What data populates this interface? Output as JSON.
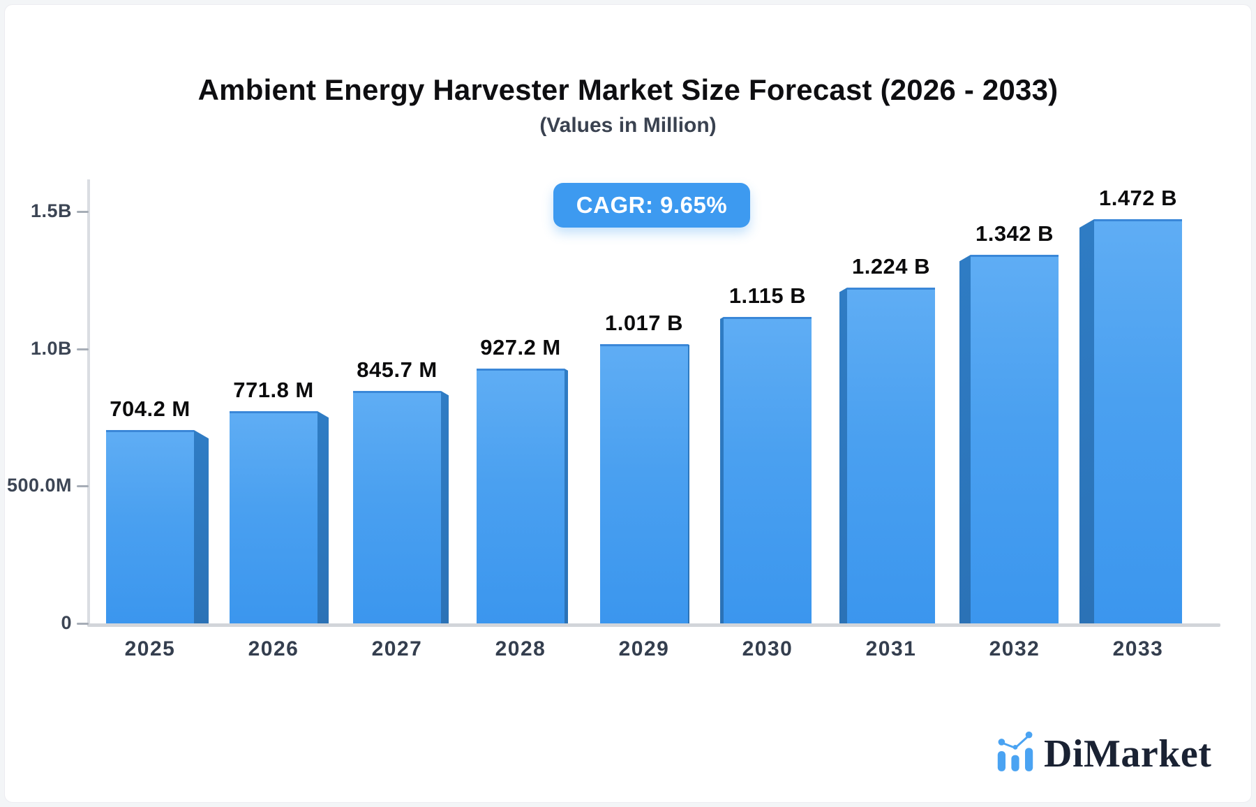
{
  "header": {
    "title": "Ambient Energy Harvester Market Size Forecast (2026 - 2033)",
    "subtitle": "(Values in Million)"
  },
  "badge": {
    "label": "CAGR: 9.65%"
  },
  "chart_data": {
    "type": "bar",
    "title": "Ambient Energy Harvester Market Size Forecast (2026 - 2033)",
    "subtitle": "(Values in Million)",
    "categories": [
      "2025",
      "2026",
      "2027",
      "2028",
      "2029",
      "2030",
      "2031",
      "2032",
      "2033"
    ],
    "values_millions": [
      704.2,
      771.8,
      845.7,
      927.2,
      1017,
      1115,
      1224,
      1342,
      1472
    ],
    "value_labels": [
      "704.2 M",
      "771.8 M",
      "845.7 M",
      "927.2 M",
      "1.017 B",
      "1.115 B",
      "1.224 B",
      "1.342 B",
      "1.472 B"
    ],
    "ylim_millions": [
      0,
      1500
    ],
    "y_ticks": [
      {
        "label": "0",
        "value_millions": 0
      },
      {
        "label": "500.0M",
        "value_millions": 500
      },
      {
        "label": "1.0B",
        "value_millions": 1000
      },
      {
        "label": "1.5B",
        "value_millions": 1500
      }
    ],
    "grid": "off",
    "legend": "none",
    "style": "3d-perspective-bars",
    "colors": {
      "bar_front_top": "#5fadf4",
      "bar_front_bottom": "#3b96ee",
      "bar_top_edge": "#3a87d8",
      "bar_side": "#2b72b6",
      "axis_line": "#d2d5da",
      "tick_mark": "#a6adb6",
      "tick_label": "#3c4554",
      "year_label": "#343e4e",
      "value_label": "#0b0b0c",
      "badge_background": "#3d9af0",
      "badge_text": "#ffffff"
    }
  },
  "logo": {
    "brand": "DiMarket",
    "icon": "bar-chart-logo-icon",
    "icon_color": "#4aa3f2",
    "text_color": "#1a2233"
  }
}
